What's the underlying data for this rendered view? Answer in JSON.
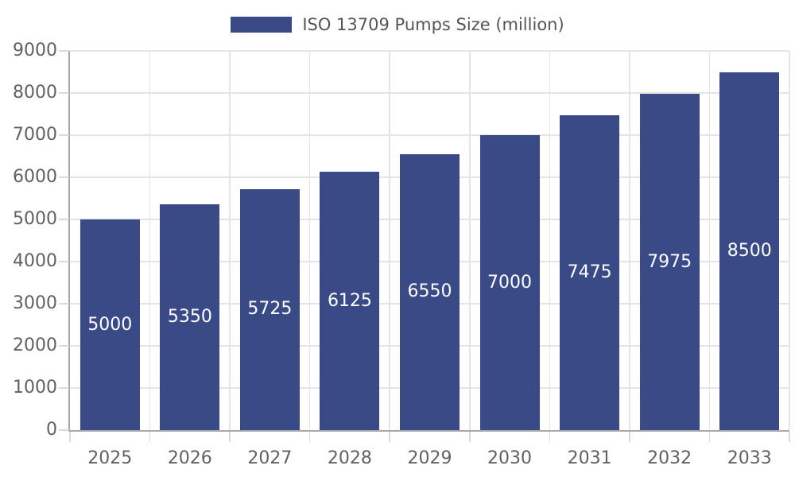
{
  "legend": {
    "series_label": "ISO 13709 Pumps Size (million)"
  },
  "chart_data": {
    "type": "bar",
    "title": "",
    "series_name": "ISO 13709 Pumps Size (million)",
    "categories": [
      "2025",
      "2026",
      "2027",
      "2028",
      "2029",
      "2030",
      "2031",
      "2032",
      "2033"
    ],
    "values": [
      5000,
      5350,
      5725,
      6125,
      6550,
      7000,
      7475,
      7975,
      8500
    ],
    "bar_value_labels": [
      "5000",
      "5350",
      "5725",
      "6125",
      "6550",
      "7000",
      "7475",
      "7975",
      "8500"
    ],
    "xlabel": "",
    "ylabel": "",
    "ylim": [
      0,
      9000
    ],
    "yticks": [
      0,
      1000,
      2000,
      3000,
      4000,
      5000,
      6000,
      7000,
      8000,
      9000
    ],
    "grid": true,
    "legend_position": "top-center",
    "bar_color": "#394a86",
    "bar_label_color": "#ffffff",
    "axis_label_color": "#616161",
    "grid_color": "#e4e4e4",
    "axis_line_color": "#a8a8a8",
    "tick_color": "#d9d9d9"
  }
}
